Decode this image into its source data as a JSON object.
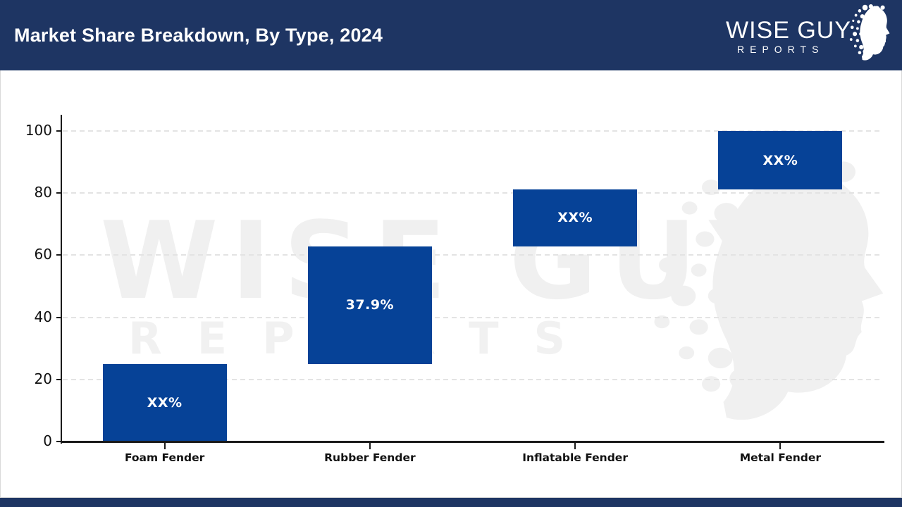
{
  "header": {
    "title": "Market Share Breakdown, By Type, 2024"
  },
  "logo": {
    "name_top": "WISE GUY",
    "name_bottom": "REPORTS"
  },
  "watermark": {
    "text_top": "WISE GUY",
    "text_bottom": "REPORTS"
  },
  "chart_data": {
    "type": "bar",
    "variant": "floating-segment (waterfall-style market share breakdown)",
    "title": "Market Share Breakdown, By Type, 2024",
    "categories": [
      "Foam Fender",
      "Rubber Fender",
      "Inflatable Fender",
      "Metal Fender"
    ],
    "bars": [
      {
        "category": "Foam Fender",
        "from": 0,
        "to": 25,
        "label": "XX%"
      },
      {
        "category": "Rubber Fender",
        "from": 25,
        "to": 62.9,
        "label": "37.9%"
      },
      {
        "category": "Inflatable Fender",
        "from": 62.9,
        "to": 81.1,
        "label": "XX%"
      },
      {
        "category": "Metal Fender",
        "from": 81.1,
        "to": 100,
        "label": "XX%"
      }
    ],
    "yticks": [
      0,
      20,
      40,
      60,
      80,
      100
    ],
    "ylim": [
      0,
      105
    ],
    "xlabel": "",
    "ylabel": "",
    "grid": "horizontal dashed",
    "legend": "none",
    "colors": {
      "bar": "#064297",
      "bar_label": "#ffffff",
      "header_bg": "#1e3563",
      "footer_bg": "#1e3563",
      "grid": "#e3e3e3",
      "axis": "#1a1a1a",
      "watermark": "#f0f0f0"
    }
  }
}
